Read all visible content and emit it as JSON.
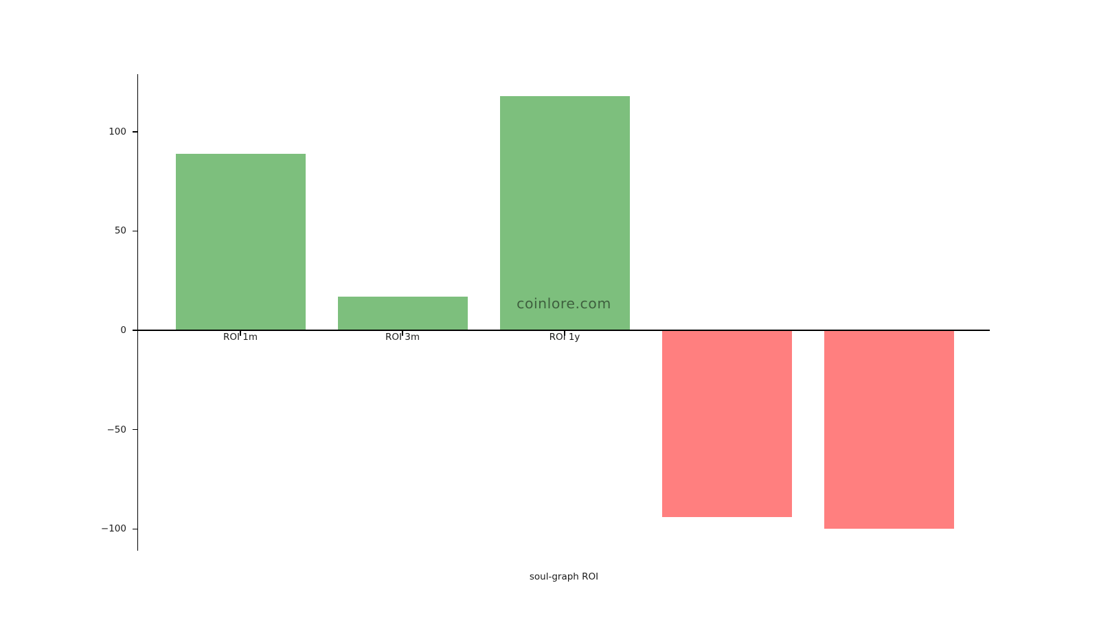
{
  "page": {
    "background": "#ffffff"
  },
  "watermark": {
    "text": "coinlore.com",
    "color": "rgba(0,0,0,0.5)"
  },
  "chart_data": {
    "type": "bar",
    "title": "",
    "xlabel": "soul-graph ROI",
    "ylabel": "",
    "categories": [
      "ROI 1m",
      "ROI 3m",
      "ROI 1y",
      "",
      ""
    ],
    "values": [
      89,
      17,
      118,
      -94,
      -100
    ],
    "yticks": [
      100,
      50,
      0,
      -50,
      -100
    ],
    "ytick_labels": [
      "100",
      "50",
      "0",
      "−50",
      "−100"
    ],
    "ylim": [
      -111,
      129
    ],
    "grid": false,
    "legend": null,
    "bar_relative_width": 0.8,
    "colors": {
      "positive": "#7dbf7d",
      "negative": "#ff7f7f",
      "axis": "#000000",
      "tick_text": "#1a1a1a"
    }
  }
}
